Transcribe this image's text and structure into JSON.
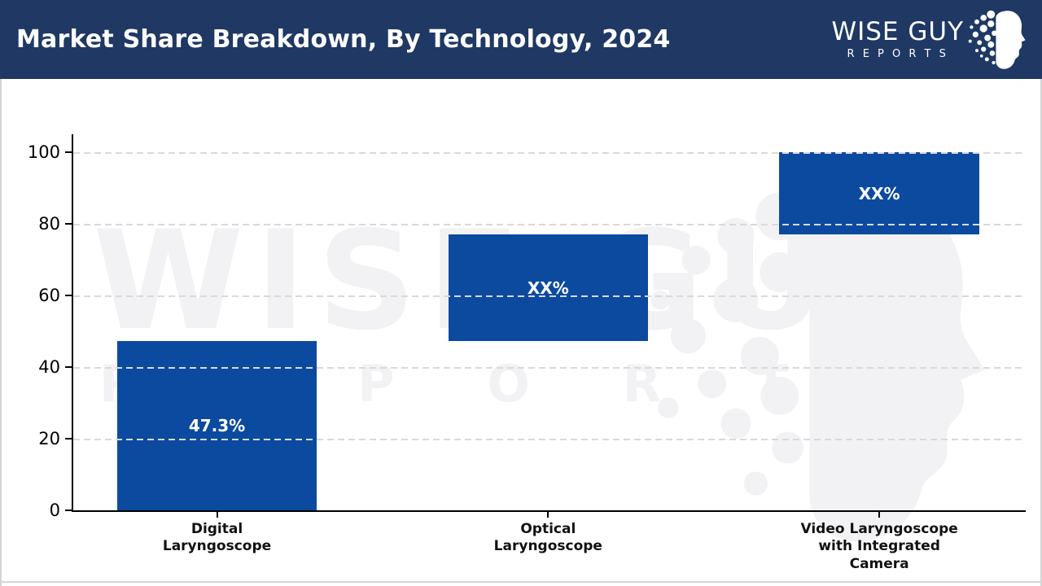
{
  "header": {
    "title": "Market Share Breakdown, By Technology, 2024",
    "logo": {
      "wordmark": "WISE GUY",
      "subtext": "R E P O R T S"
    }
  },
  "watermark": {
    "wordmark": "WISE GUY",
    "subtext": "R E P O R T S"
  },
  "colors": {
    "header_bg": "#1f3864",
    "header_text": "#ffffff",
    "bar_fill": "#0c4aa0",
    "bar_label_text": "#ffffff",
    "gridline": "#d9d9d9",
    "axis_line": "#000000",
    "tick_label_text": "#000000",
    "watermark_text": "#f2f2f5",
    "page_border": "#d4d4d4"
  },
  "chart_data": {
    "type": "bar",
    "subtype": "waterfall",
    "title": "Market Share Breakdown, By Technology, 2024",
    "xlabel": "",
    "ylabel": "",
    "ylim": [
      0,
      100
    ],
    "yticks": [
      0,
      20,
      40,
      60,
      80,
      100
    ],
    "grid": "horizontal dashed",
    "legend": "none",
    "categories": [
      "Digital\nLaryngoscope",
      "Optical\nLaryngoscope",
      "Video Laryngoscope\nwith Integrated\nCamera"
    ],
    "bars": [
      {
        "category": "Digital Laryngoscope",
        "label": "47.3%",
        "start": 0,
        "end": 47.3
      },
      {
        "category": "Optical Laryngoscope",
        "label": "XX%",
        "start": 47.3,
        "end": 77
      },
      {
        "category": "Video Laryngoscope with Integrated Camera",
        "label": "XX%",
        "start": 77,
        "end": 100
      }
    ],
    "layout": {
      "bar_centers_pct": [
        15.1,
        49.9,
        84.7
      ],
      "bar_width_pct": 21
    }
  }
}
